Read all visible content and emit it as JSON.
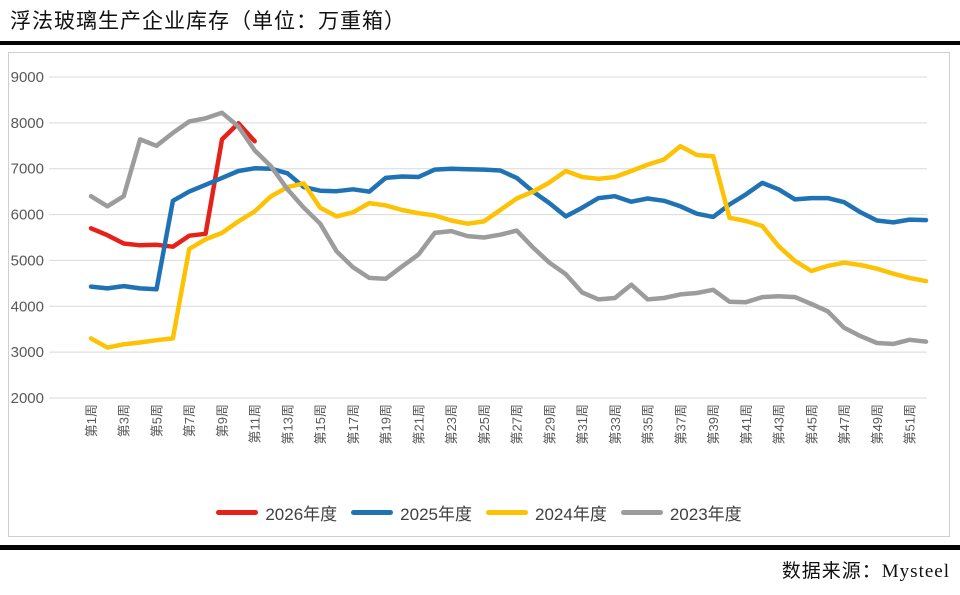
{
  "header": {
    "title": "浮法玻璃生产企业库存（单位：万重箱）"
  },
  "footer": {
    "source": "数据来源：Mysteel"
  },
  "style": {
    "grid_color": "#d9d9d9",
    "axis_label_color": "#595959",
    "box_border_color": "#cfcfcf",
    "legend_text_color": "#404040"
  },
  "chart_data": {
    "type": "line",
    "title": "浮法玻璃生产企业库存（单位：万重箱）",
    "xlabel": "",
    "ylabel": "",
    "ylim": [
      2000,
      9000
    ],
    "y_ticks": [
      2000,
      3000,
      4000,
      5000,
      6000,
      7000,
      8000,
      9000
    ],
    "x_weeks": 52,
    "x_tick_step": 2,
    "x_tick_labels": [
      "第1周",
      "第3周",
      "第5周",
      "第7周",
      "第9周",
      "第11周",
      "第13周",
      "第15周",
      "第17周",
      "第19周",
      "第21周",
      "第23周",
      "第25周",
      "第27周",
      "第29周",
      "第31周",
      "第33周",
      "第35周",
      "第37周",
      "第39周",
      "第41周",
      "第43周",
      "第45周",
      "第47周",
      "第49周",
      "第51周"
    ],
    "grid": "horizontal",
    "legend_position": "bottom",
    "series": [
      {
        "name": "2026年度",
        "color": "#e6211a",
        "values": [
          5700,
          5550,
          5370,
          5330,
          5340,
          5300,
          5540,
          5580,
          7640,
          7990,
          7600
        ]
      },
      {
        "name": "2025年度",
        "color": "#1f73b5",
        "values": [
          4430,
          4390,
          4440,
          4390,
          4370,
          6300,
          6500,
          6650,
          6800,
          6950,
          7010,
          7000,
          6900,
          6600,
          6520,
          6510,
          6550,
          6500,
          6800,
          6830,
          6820,
          6980,
          7000,
          6990,
          6980,
          6960,
          6800,
          6500,
          6250,
          5960,
          6150,
          6360,
          6400,
          6280,
          6350,
          6300,
          6180,
          6020,
          5950,
          6220,
          6440,
          6690,
          6550,
          6330,
          6360,
          6360,
          6270,
          6050,
          5870,
          5830,
          5890,
          5880
        ]
      },
      {
        "name": "2024年度",
        "color": "#fcc203",
        "values": [
          3300,
          3100,
          3170,
          3210,
          3260,
          3300,
          5250,
          5460,
          5600,
          5850,
          6070,
          6400,
          6600,
          6680,
          6150,
          5960,
          6050,
          6250,
          6200,
          6100,
          6030,
          5980,
          5870,
          5800,
          5850,
          6100,
          6350,
          6500,
          6700,
          6950,
          6820,
          6780,
          6820,
          6950,
          7090,
          7200,
          7490,
          7300,
          7270,
          5930,
          5860,
          5750,
          5310,
          4990,
          4770,
          4880,
          4950,
          4900,
          4820,
          4710,
          4620,
          4550
        ]
      },
      {
        "name": "2023年度",
        "color": "#9c9c9c",
        "values": [
          6400,
          6180,
          6400,
          7640,
          7500,
          7780,
          8030,
          8100,
          8220,
          7920,
          7400,
          7050,
          6550,
          6150,
          5800,
          5200,
          4850,
          4620,
          4600,
          4870,
          5130,
          5600,
          5640,
          5530,
          5500,
          5560,
          5650,
          5280,
          4950,
          4700,
          4300,
          4150,
          4180,
          4470,
          4150,
          4180,
          4260,
          4290,
          4360,
          4100,
          4090,
          4200,
          4220,
          4200,
          4050,
          3890,
          3530,
          3350,
          3200,
          3180,
          3270,
          3230
        ]
      }
    ]
  }
}
